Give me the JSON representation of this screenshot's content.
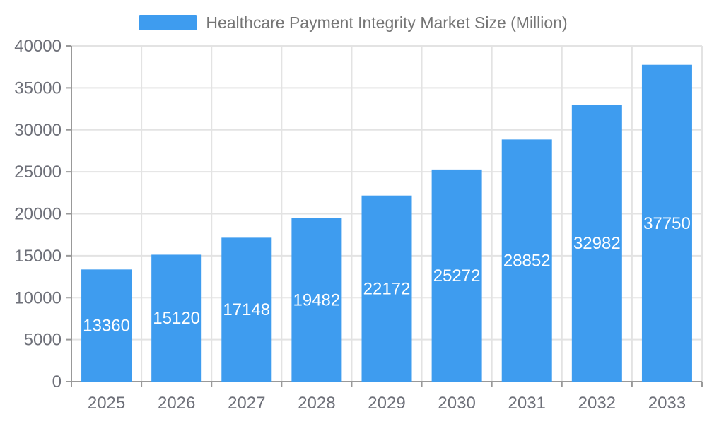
{
  "chart_data": {
    "type": "bar",
    "title": "Healthcare Payment Integrity Market Size (Million)",
    "categories": [
      "2025",
      "2026",
      "2027",
      "2028",
      "2029",
      "2030",
      "2031",
      "2032",
      "2033"
    ],
    "values": [
      13360,
      15120,
      17148,
      19482,
      22172,
      25272,
      28852,
      32982,
      37750
    ],
    "series_name": "Healthcare Payment Integrity Market Size (Million)",
    "xlabel": "",
    "ylabel": "",
    "ylim": [
      0,
      40000
    ],
    "ytick_step": 5000,
    "ytick_labels": [
      "0",
      "5000",
      "10000",
      "15000",
      "20000",
      "25000",
      "30000",
      "35000",
      "40000"
    ],
    "grid": true,
    "legend_position": "top",
    "value_labels": "inside-center",
    "colors": {
      "bar": "#3E9CEF",
      "axis": "#999999",
      "grid": "#E3E3E3",
      "axis_text": "#6E7079",
      "legend_text": "#757575",
      "value_text": "#FFFFFF",
      "background": "#FFFFFF"
    }
  }
}
